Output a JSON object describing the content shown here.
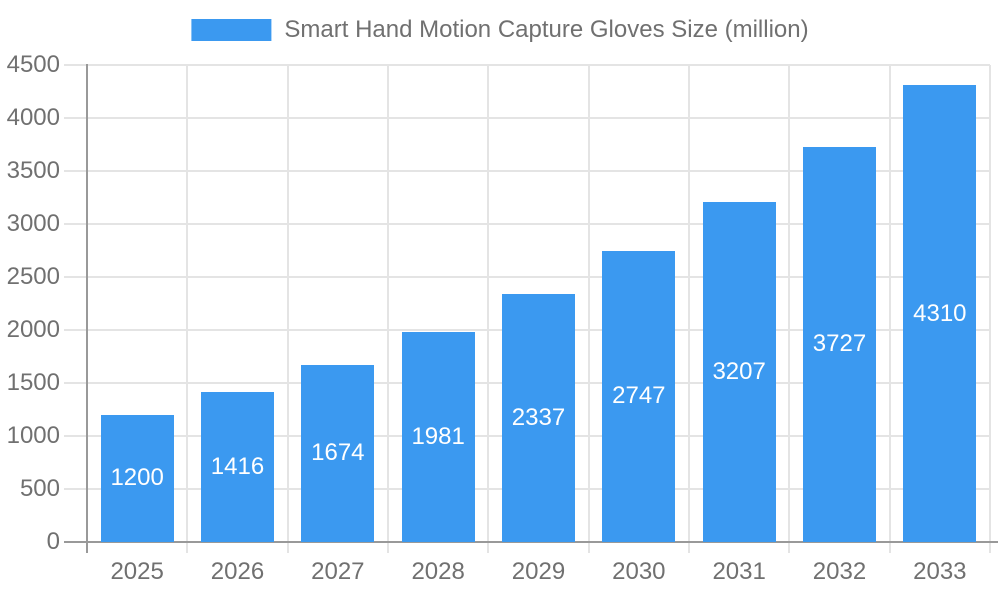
{
  "chart_data": {
    "type": "bar",
    "title": "Smart Hand Motion Capture Gloves Size (million)",
    "categories": [
      "2025",
      "2026",
      "2027",
      "2028",
      "2029",
      "2030",
      "2031",
      "2032",
      "2033"
    ],
    "values": [
      1200,
      1416,
      1674,
      1981,
      2337,
      2747,
      3207,
      3727,
      4310
    ],
    "xlabel": "",
    "ylabel": "",
    "ylim": [
      0,
      4500
    ],
    "ytick_step": 500,
    "ytick_labels": [
      "0",
      "500",
      "1000",
      "1500",
      "2000",
      "2500",
      "3000",
      "3500",
      "4000",
      "4500"
    ],
    "bar_value_labels_visible": true,
    "grid": true,
    "legend_position": "top-center",
    "colors": {
      "bar": "#3B99F0",
      "bar_label_text": "#FFFFFF",
      "axis_text": "#707070",
      "legend_text": "#707070",
      "gridline": "#E4E4E4",
      "axis_line": "#999999",
      "background": "#FFFFFF"
    }
  }
}
